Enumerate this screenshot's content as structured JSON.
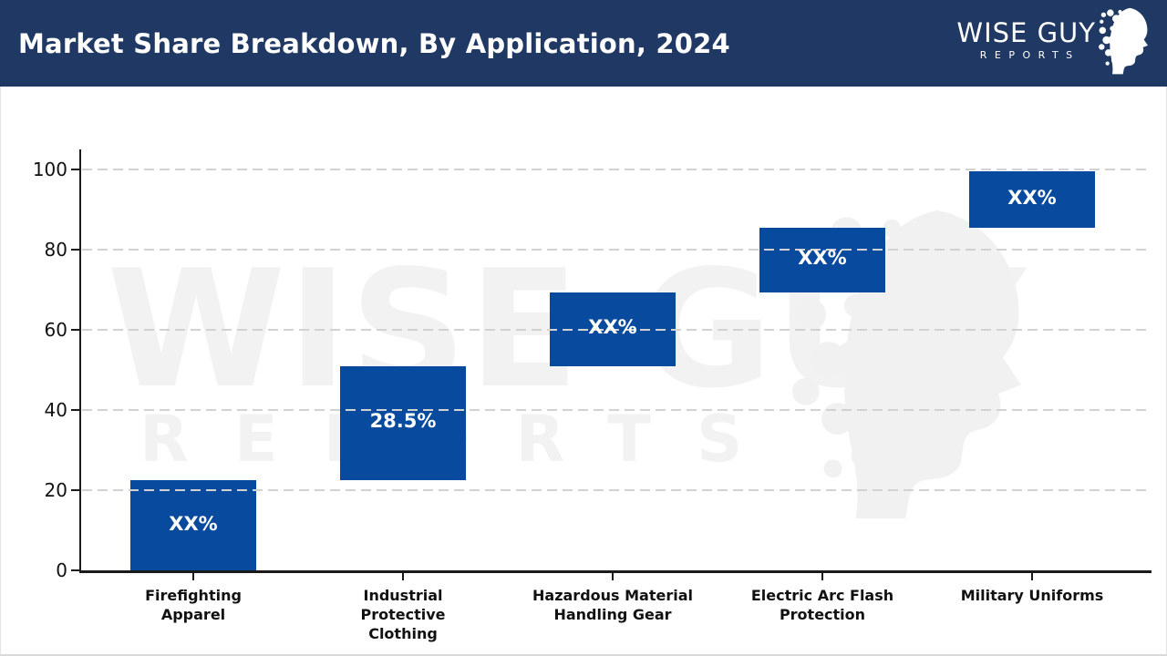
{
  "header": {
    "title": "Market Share Breakdown, By Application, 2024",
    "logo": {
      "name": "WISE GUY",
      "subtitle": "REPORTS"
    }
  },
  "watermark": {
    "line1": "WISE GUY",
    "line2": "REPORTS"
  },
  "colors": {
    "header_bg": "#1f3864",
    "bar": "#084a9e",
    "bar_label": "#ffffff",
    "watermark": "#f2f2f2",
    "gridline": "#d2d2d2",
    "axis": "#1a1a1a"
  },
  "chart_data": {
    "type": "bar",
    "variant": "waterfall",
    "title": "Market Share Breakdown, By Application, 2024",
    "categories": [
      "Firefighting Apparel",
      "Industrial Protective Clothing",
      "Hazardous Material Handling Gear",
      "Electric Arc Flash Protection",
      "Military Uniforms"
    ],
    "category_lines": [
      [
        "Firefighting",
        "Apparel"
      ],
      [
        "Industrial",
        "Protective",
        "Clothing"
      ],
      [
        "Hazardous Material",
        "Handling Gear"
      ],
      [
        "Electric Arc Flash",
        "Protection"
      ],
      [
        "Military Uniforms"
      ]
    ],
    "bars": [
      {
        "category": "Firefighting Apparel",
        "start": 0,
        "end": 22.5,
        "label": "XX%"
      },
      {
        "category": "Industrial Protective Clothing",
        "start": 22.5,
        "end": 51.0,
        "label": "28.5%"
      },
      {
        "category": "Hazardous Material Handling Gear",
        "start": 51.0,
        "end": 69.3,
        "label": "XX%"
      },
      {
        "category": "Electric Arc Flash Protection",
        "start": 69.3,
        "end": 85.5,
        "label": "XX%"
      },
      {
        "category": "Military Uniforms",
        "start": 85.5,
        "end": 99.5,
        "label": "XX%"
      }
    ],
    "xlabel": "",
    "ylabel": "",
    "ylim": [
      0,
      100
    ],
    "yticks": [
      0,
      20,
      40,
      60,
      80,
      100
    ],
    "grid": "horizontal-dashed",
    "legend": "none",
    "bar_color": "#084a9e",
    "bar_label_color": "#ffffff"
  }
}
